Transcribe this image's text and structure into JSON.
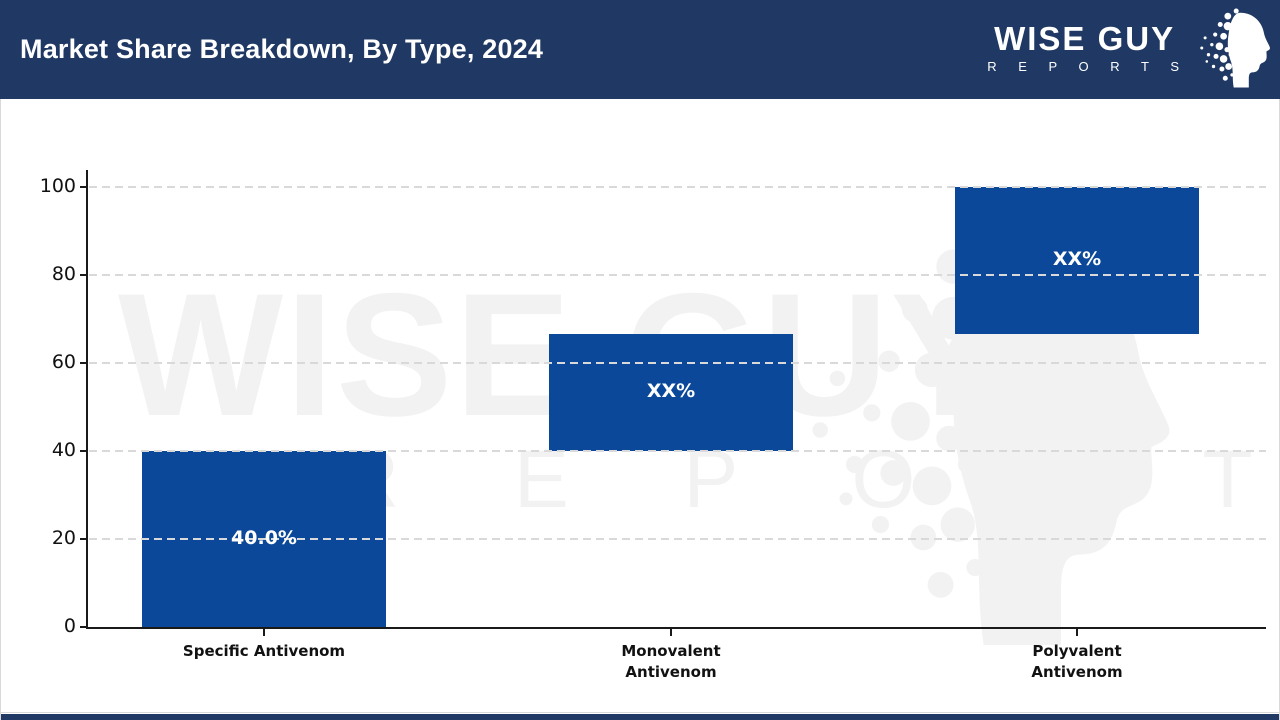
{
  "header": {
    "title": "Market Share Breakdown, By Type, 2024",
    "logo": {
      "line1": "WISE GUY",
      "line2": "R E P O R T S",
      "face_icon": "face-profile-dots"
    }
  },
  "watermark": {
    "line1": "WISE GUY",
    "line2": "R E P O R T S"
  },
  "colors": {
    "header_bg": "#1f3864",
    "bar_fill": "#0b4899",
    "grid": "#d9d9d9",
    "axis": "#1a1a1a",
    "bar_label_text": "#ffffff",
    "watermark": "#f2f2f2"
  },
  "chart_data": {
    "type": "bar",
    "subtype": "waterfall",
    "title": "Market Share Breakdown, By Type, 2024",
    "xlabel": "",
    "ylabel": "",
    "categories": [
      "Specific Antivenom",
      "Monovalent Antivenom",
      "Polyvalent Antivenom"
    ],
    "category_label_lines": [
      [
        "Specific Antivenom"
      ],
      [
        "Monovalent",
        "Antivenom"
      ],
      [
        "Polyvalent",
        "Antivenom"
      ]
    ],
    "segments": [
      {
        "category": "Specific Antivenom",
        "start": 0,
        "end": 40,
        "label": "40.0%"
      },
      {
        "category": "Monovalent Antivenom",
        "start": 40,
        "end": 66.7,
        "label": "XX%"
      },
      {
        "category": "Polyvalent Antivenom",
        "start": 66.7,
        "end": 100,
        "label": "XX%"
      }
    ],
    "yticks": [
      0,
      20,
      40,
      60,
      80,
      100
    ],
    "ylim": [
      0,
      100
    ],
    "grid": "horizontal-dashed",
    "legend": "none"
  }
}
